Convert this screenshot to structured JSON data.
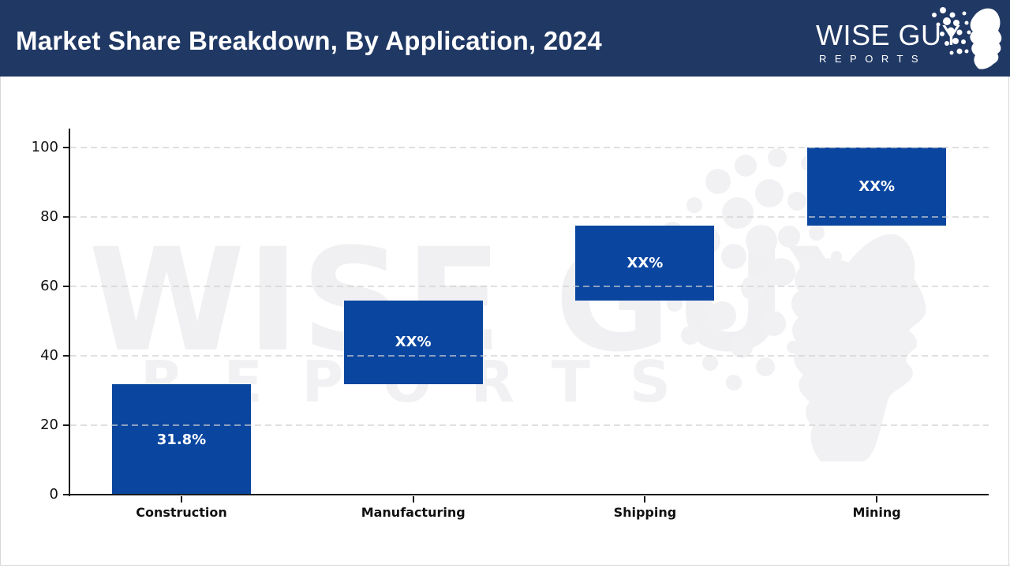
{
  "header": {
    "title": "Market Share Breakdown, By Application, 2024",
    "logo": {
      "brand_line1": "WISE GUY",
      "brand_line2": "REPORTS"
    }
  },
  "watermark": {
    "line1": "WISE GUY",
    "line2": "REPORTS"
  },
  "chart_data": {
    "type": "bar",
    "variant": "waterfall",
    "title": "Market Share Breakdown, By Application, 2024",
    "categories": [
      "Construction",
      "Manufacturing",
      "Shipping",
      "Mining"
    ],
    "segments": [
      {
        "category": "Construction",
        "start": 0,
        "end": 31.8,
        "label": "31.8%"
      },
      {
        "category": "Manufacturing",
        "start": 31.8,
        "end": 56,
        "label": "XX%"
      },
      {
        "category": "Shipping",
        "start": 56,
        "end": 77.5,
        "label": "XX%"
      },
      {
        "category": "Mining",
        "start": 77.5,
        "end": 100,
        "label": "XX%"
      }
    ],
    "xlabel": "",
    "ylabel": "",
    "yticks": [
      0,
      20,
      40,
      60,
      80,
      100
    ],
    "ylim": [
      0,
      105
    ],
    "grid": "horizontal-dashed",
    "legend": "none",
    "colors": {
      "bar": "#0a46a0",
      "bar_label": "#ffffff",
      "header_bg": "#203864",
      "grid": "#dcdcdc",
      "axis": "#1a1a1a",
      "watermark": "#f0f0f2"
    }
  }
}
